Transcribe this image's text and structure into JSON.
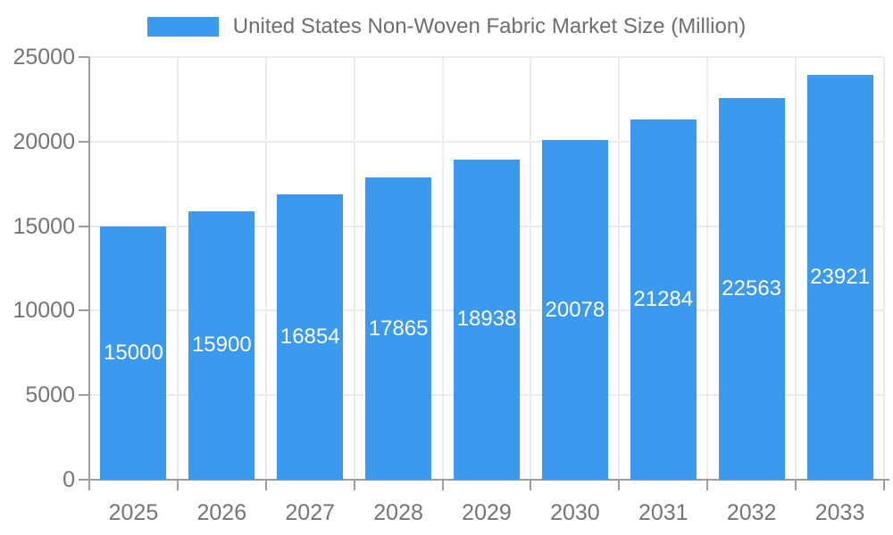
{
  "legend": {
    "label": "United States Non-Woven Fabric Market Size (Million)",
    "swatch_color": "#3b99ef"
  },
  "chart_data": {
    "type": "bar",
    "title": "United States Non-Woven Fabric Market Size (Million)",
    "categories": [
      "2025",
      "2026",
      "2027",
      "2028",
      "2029",
      "2030",
      "2031",
      "2032",
      "2033"
    ],
    "values": [
      15000,
      15900,
      16854,
      17865,
      18938,
      20078,
      21284,
      22563,
      23921
    ],
    "xlabel": "",
    "ylabel": "",
    "ylim": [
      0,
      25000
    ],
    "yticks": [
      0,
      5000,
      10000,
      15000,
      20000,
      25000
    ],
    "grid": true,
    "legend_position": "top",
    "bar_color": "#3b99ef",
    "value_label_color": "#ffffff",
    "axis_color": "#9e9e9e",
    "gridline_color": "#ebebeb",
    "tick_label_color": "#757575"
  }
}
